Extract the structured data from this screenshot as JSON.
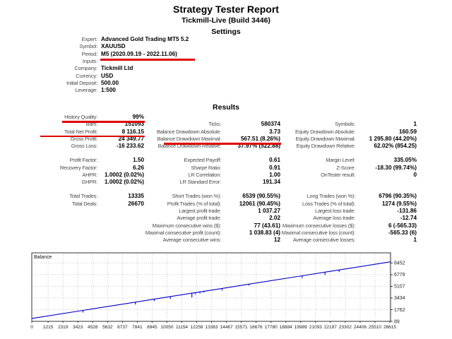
{
  "header": {
    "title": "Strategy Tester Report",
    "subtitle": "Tickmill-Live (Build 3446)"
  },
  "settings": {
    "heading": "Settings",
    "rows": [
      {
        "label": "Expert:",
        "value": "Advanced Gold Trading MT5 5.2",
        "underline": false
      },
      {
        "label": "Symbol:",
        "value": "XAUUSD",
        "underline": false
      },
      {
        "label": "Period:",
        "value": "M5 (2020.09.19 - 2022.11.06)",
        "underline": true
      },
      {
        "label": "Inputs:",
        "value": "",
        "underline": false
      },
      {
        "label": "Company:",
        "value": "Tickmill Ltd",
        "underline": false
      },
      {
        "label": "Currency:",
        "value": "USD",
        "underline": false
      },
      {
        "label": "Initial Deposit:",
        "value": "500.00",
        "underline": false
      },
      {
        "label": "Leverage:",
        "value": "1:500",
        "underline": false
      }
    ]
  },
  "results": {
    "heading": "Results",
    "blocks": [
      {
        "rows": [
          [
            {
              "l": "History Quality:",
              "v": "99%",
              "u": true
            },
            {
              "l": "",
              "v": ""
            },
            {
              "l": "",
              "v": ""
            }
          ],
          [
            {
              "l": "Bars:",
              "v": "151093"
            },
            {
              "l": "Ticks:",
              "v": "580374"
            },
            {
              "l": "Symbols:",
              "v": "1"
            }
          ],
          [
            {
              "l": "Total Net Profit:",
              "v": "8 116.15",
              "u": true
            },
            {
              "l": "Balance Drawdown Absolute:",
              "v": "3.73"
            },
            {
              "l": "Equity Drawdown Absolute:",
              "v": "160.59"
            }
          ],
          [
            {
              "l": "Gross Profit:",
              "v": "24 349.77"
            },
            {
              "l": "Balance Drawdown Maximal:",
              "v": "567.51 (8.26%)",
              "u": true
            },
            {
              "l": "Equity Drawdown Maximal:",
              "v": "1 295.80 (44.20%)"
            }
          ],
          [
            {
              "l": "Gross Loss:",
              "v": "-16 233.62"
            },
            {
              "l": "Balance Drawdown Relative:",
              "v": "37.97% (522.88)"
            },
            {
              "l": "Equity Drawdown Relative:",
              "v": "62.02% (854.25)"
            }
          ]
        ]
      },
      {
        "rows": [
          [
            {
              "l": "Profit Factor:",
              "v": "1.50"
            },
            {
              "l": "Expected Payoff:",
              "v": "0.61"
            },
            {
              "l": "Margin Level:",
              "v": "335.05%"
            }
          ],
          [
            {
              "l": "Recovery Factor:",
              "v": "6.26"
            },
            {
              "l": "Sharpe Ratio:",
              "v": "0.91"
            },
            {
              "l": "Z-Score:",
              "v": "-18.30 (99.74%)"
            }
          ],
          [
            {
              "l": "AHPR:",
              "v": "1.0002 (0.02%)"
            },
            {
              "l": "LR Correlation:",
              "v": "1.00"
            },
            {
              "l": "OnTester result:",
              "v": "0"
            }
          ],
          [
            {
              "l": "GHPR:",
              "v": "1.0002 (0.02%)"
            },
            {
              "l": "LR Standard Error:",
              "v": "191.34"
            },
            {
              "l": "",
              "v": ""
            }
          ]
        ]
      },
      {
        "rows": [
          [
            {
              "l": "Total Trades:",
              "v": "13335"
            },
            {
              "l": "Short Trades (won %):",
              "v": "6539 (90.55%)"
            },
            {
              "l": "Long Trades (won %):",
              "v": "6796 (90.35%)"
            }
          ],
          [
            {
              "l": "Total Deals:",
              "v": "26670"
            },
            {
              "l": "Profit Trades (% of total):",
              "v": "12061 (90.45%)"
            },
            {
              "l": "Loss Trades (% of total):",
              "v": "1274 (9.55%)"
            }
          ],
          [
            {
              "l": "",
              "v": ""
            },
            {
              "l": "Largest profit trade:",
              "v": "1 037.27"
            },
            {
              "l": "Largest loss trade:",
              "v": "-131.86"
            }
          ],
          [
            {
              "l": "",
              "v": ""
            },
            {
              "l": "Average profit trade:",
              "v": "2.02"
            },
            {
              "l": "Average loss trade:",
              "v": "-12.74"
            }
          ],
          [
            {
              "l": "",
              "v": ""
            },
            {
              "l": "Maximum consecutive wins ($):",
              "v": "77 (43.61)"
            },
            {
              "l": "Maximum consecutive losses ($):",
              "v": "6 (-565.33)"
            }
          ],
          [
            {
              "l": "",
              "v": ""
            },
            {
              "l": "Maximal consecutive profit (count):",
              "v": "1 038.83 (4)"
            },
            {
              "l": "Maximal consecutive loss (count):",
              "v": "-565.33 (6)"
            }
          ],
          [
            {
              "l": "",
              "v": ""
            },
            {
              "l": "Average consecutive wins:",
              "v": "12"
            },
            {
              "l": "Average consecutive losses:",
              "v": "1"
            }
          ]
        ]
      }
    ]
  },
  "colors": {
    "accent_red": "#e00000",
    "chart_line": "#0000cc",
    "grid": "#c9c9c9",
    "plot_border": "#333333",
    "label_gray": "#4a4a4a"
  },
  "chart_data": {
    "type": "line",
    "series_label": "Balance",
    "legend_position": "top-left",
    "grid": true,
    "x_range": [
      0,
      26670
    ],
    "y_range": [
      89,
      9900
    ],
    "x_ticks": [
      0,
      1215,
      2319,
      3423,
      4528,
      5632,
      6737,
      7841,
      8945,
      10050,
      11154,
      12258,
      13363,
      14467,
      15571,
      16676,
      17780,
      18884,
      19989,
      21093,
      22197,
      23302,
      24406,
      25510,
      26615
    ],
    "y_ticks": [
      89,
      1762,
      3434,
      5107,
      6779,
      8452
    ],
    "balance_start": 500,
    "balance_end": 8616,
    "drawdown_spikes": [
      [
        3800,
        260
      ],
      [
        7700,
        300
      ],
      [
        9100,
        250
      ],
      [
        10300,
        310
      ],
      [
        11900,
        560
      ],
      [
        12150,
        200
      ],
      [
        12500,
        180
      ],
      [
        12800,
        150
      ],
      [
        14150,
        260
      ],
      [
        16150,
        170
      ],
      [
        20100,
        300
      ],
      [
        21800,
        370
      ],
      [
        22850,
        260
      ]
    ]
  }
}
